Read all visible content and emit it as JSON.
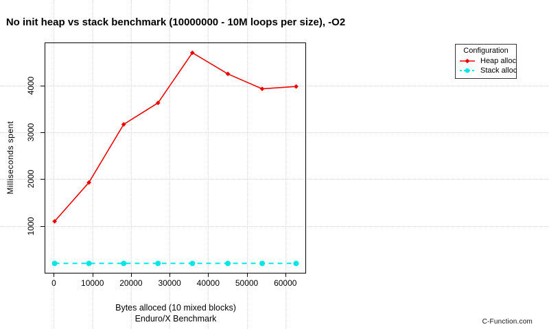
{
  "watermark": "C-Function.com",
  "colors": {
    "grid": "#d9d9d9",
    "axis": "#000000",
    "legend_border": "#333333",
    "heap_series": "#ee0000",
    "stack_series": "#00e5e5"
  },
  "chart_data": {
    "type": "line",
    "title": "No init heap vs stack benchmark (10000000 - 10M loops per size), -O2",
    "xlabel": "Bytes alloced (10 mixed blocks)",
    "xlabel_sub": "Enduro/X Benchmark",
    "ylabel": "Milliseconds spent",
    "x_ticks": [
      0,
      10000,
      20000,
      30000,
      40000,
      50000,
      60000
    ],
    "y_ticks": [
      1000,
      2000,
      3000,
      4000
    ],
    "xlim": [
      -2400,
      65200
    ],
    "ylim": [
      0,
      4920
    ],
    "grid": true,
    "legend": {
      "title": "Configuration",
      "position": "top-right"
    },
    "x": [
      200,
      9100,
      18100,
      27000,
      35900,
      45100,
      54000,
      62800
    ],
    "series": [
      {
        "name": "Heap alloc",
        "color": "#ee0000",
        "line_style": "solid",
        "marker": "diamond",
        "values": [
          1100,
          1930,
          3170,
          3630,
          4700,
          4250,
          3930,
          3980
        ]
      },
      {
        "name": "Stack alloc",
        "color": "#00e5e5",
        "line_style": "dashed",
        "marker": "circle",
        "values": [
          200,
          200,
          200,
          200,
          200,
          200,
          200,
          200
        ]
      }
    ]
  }
}
